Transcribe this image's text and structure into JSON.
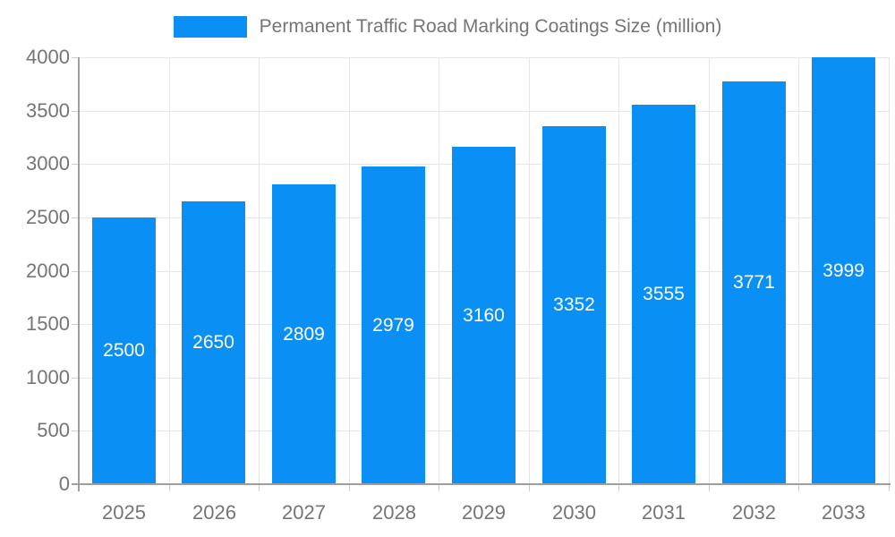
{
  "legend": {
    "label": "Permanent Traffic Road Marking Coatings Size (million)"
  },
  "chart_data": {
    "type": "bar",
    "title": "Permanent Traffic Road Marking Coatings Size (million)",
    "categories": [
      "2025",
      "2026",
      "2027",
      "2028",
      "2029",
      "2030",
      "2031",
      "2032",
      "2033"
    ],
    "values": [
      2500,
      2650,
      2809,
      2979,
      3160,
      3352,
      3555,
      3771,
      3999
    ],
    "xlabel": "",
    "ylabel": "",
    "ylim": [
      0,
      4000
    ],
    "yticks": [
      0,
      500,
      1000,
      1500,
      2000,
      2500,
      3000,
      3500,
      4000
    ],
    "grid": true,
    "legend_position": "top",
    "bar_labels": "inside-center-white"
  },
  "colors": {
    "bar": "#0A90F5",
    "grid": "#E6E6E6",
    "axis": "#9E9E9E",
    "tick": "#CCCCCC",
    "text": "#757575",
    "bar_label": "#FFFFFF",
    "background": "#FFFFFF"
  }
}
